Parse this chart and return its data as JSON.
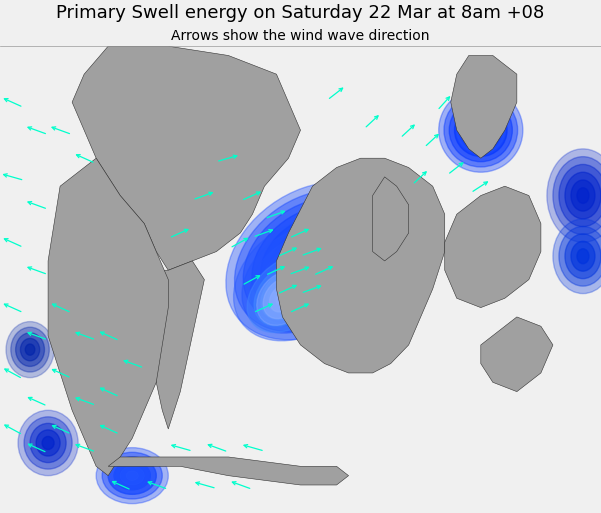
{
  "title": "Primary Swell energy on Saturday 22 Mar at 8am +08",
  "subtitle": "Arrows show the wind wave direction",
  "title_fontsize": 13,
  "subtitle_fontsize": 10,
  "bg_color": "#000000",
  "title_bg": "#f0f0f0",
  "fig_width": 6.01,
  "fig_height": 5.13,
  "dpi": 100
}
